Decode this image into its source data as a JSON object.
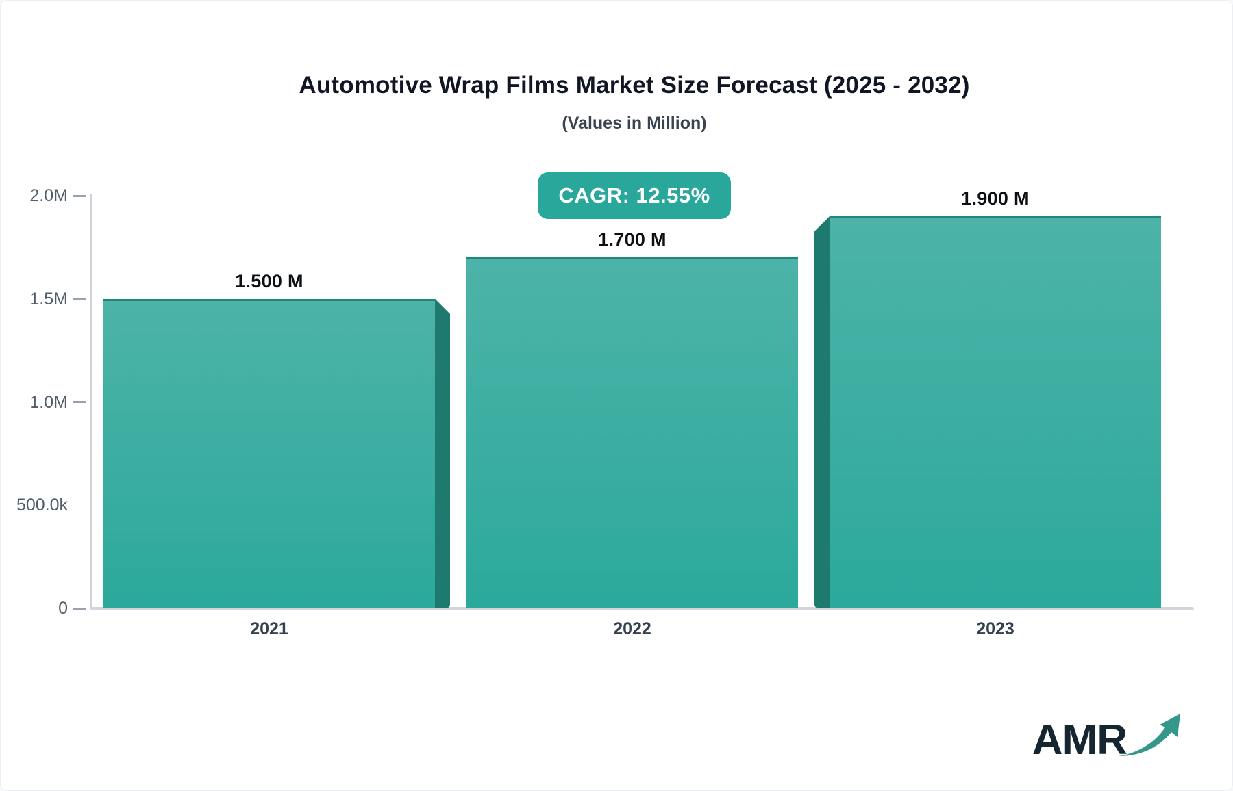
{
  "header": {
    "title": "Automotive Wrap Films Market Size Forecast (2025 - 2032)",
    "subtitle": "(Values in Million)"
  },
  "badge": {
    "label": "CAGR: 12.55%"
  },
  "chart_data": {
    "type": "bar",
    "categories": [
      "2021",
      "2022",
      "2023"
    ],
    "values": [
      1500000,
      1700000,
      1900000
    ],
    "value_labels": [
      "1.500 M",
      "1.700 M",
      "1.900 M"
    ],
    "title": "Automotive Wrap Films Market Size Forecast (2025 - 2032)",
    "subtitle": "(Values in Million)",
    "xlabel": "",
    "ylabel": "",
    "ylim": [
      0,
      2000000
    ],
    "yticks": [
      {
        "label": "2.0M",
        "value": 2000000,
        "tick": true
      },
      {
        "label": "1.5M",
        "value": 1500000,
        "tick": true
      },
      {
        "label": "1.0M",
        "value": 1000000,
        "tick": true
      },
      {
        "label": "500.0k",
        "value": 500000,
        "tick": false
      },
      {
        "label": "0",
        "value": 0,
        "tick": true
      }
    ],
    "grid": false,
    "legend": "none",
    "bar_depth_side": [
      "right",
      "none",
      "left"
    ],
    "colors": {
      "bar_gradient_top": "#4db3a8",
      "bar_gradient_bottom": "#2ba99b",
      "bar_top_edge": "#1f887b",
      "bar_depth": "#1e7a6e",
      "axis_line": "#cfd3d9",
      "baseline": "#d2d5db",
      "badge_bg": "#2aa79b",
      "badge_text": "#ffffff",
      "logo_navy": "#162630",
      "logo_teal": "#35968c"
    }
  },
  "logo": {
    "text": "AMR",
    "arrow_icon": "trend-up-arrow"
  }
}
